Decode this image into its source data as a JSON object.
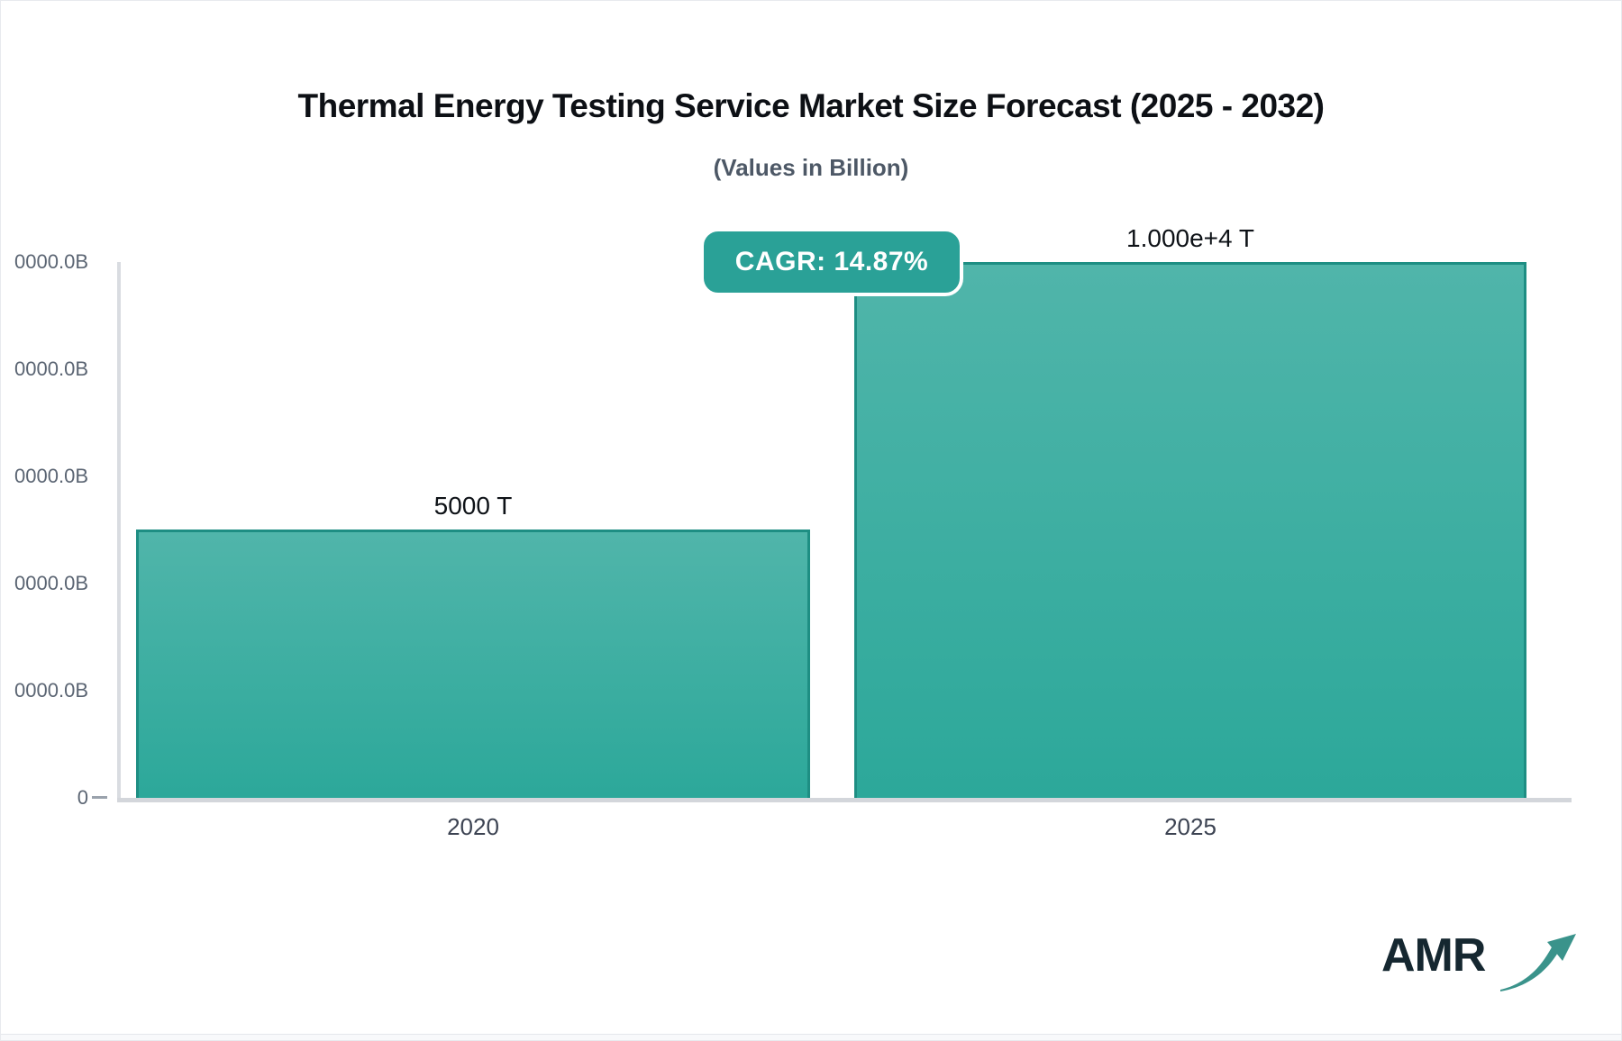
{
  "header": {
    "title": "Thermal Energy Testing Service Market Size Forecast (2025 - 2032)",
    "subtitle": "(Values in Billion)"
  },
  "cagr": {
    "label": "CAGR: 14.87%",
    "badge_color": "#2aa197"
  },
  "chart_data": {
    "type": "bar",
    "title": "Thermal Energy Testing Service Market Size Forecast (2025 - 2032)",
    "subtitle": "(Values in Billion)",
    "categories": [
      "2020",
      "2025"
    ],
    "values": [
      5000,
      10000
    ],
    "bar_labels": [
      "5000 T",
      "1.000e+4 T"
    ],
    "ylim": [
      0,
      10000
    ],
    "y_tick_labels_visible": [
      "0000.0B",
      "0000.0B",
      "0000.0B",
      "0000.0B",
      "0000.0B",
      "0"
    ],
    "grid": false,
    "legend": false,
    "bar_color_top": "#50b5aa",
    "bar_color_bottom": "#2ca89a",
    "bar_border_color": "#1e8e83",
    "annotation": "CAGR: 14.87%"
  },
  "logo": {
    "text": "AMR",
    "arrow_color": "#3a938b"
  }
}
